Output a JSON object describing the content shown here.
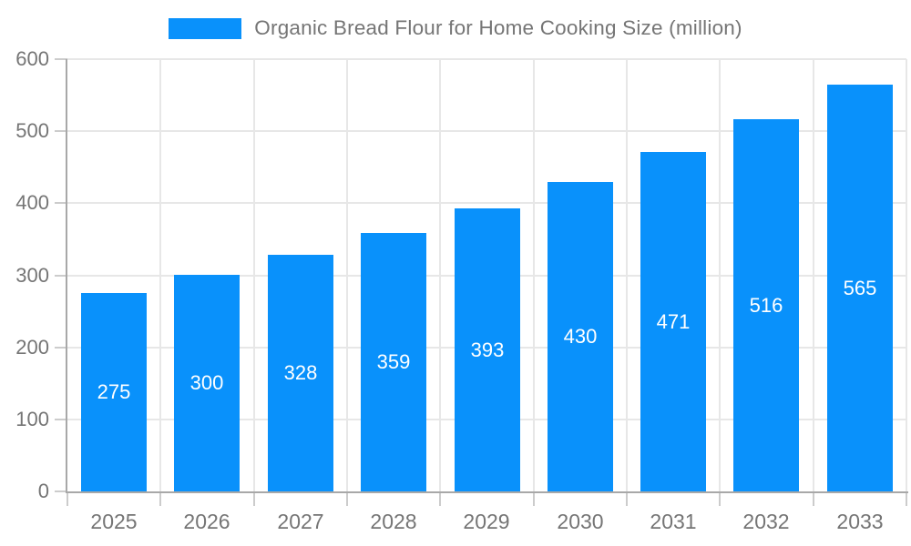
{
  "chart_data": {
    "type": "bar",
    "title": "Organic Bread Flour for Home Cooking Size (million)",
    "categories": [
      "2025",
      "2026",
      "2027",
      "2028",
      "2029",
      "2030",
      "2031",
      "2032",
      "2033"
    ],
    "values": [
      275,
      300,
      328,
      359,
      393,
      430,
      471,
      516,
      565
    ],
    "xlabel": "",
    "ylabel": "",
    "ylim": [
      0,
      600
    ],
    "yticks": [
      0,
      100,
      200,
      300,
      400,
      500,
      600
    ],
    "grid": true,
    "legend_position": "top",
    "value_labels": "inside-center"
  },
  "legend": {
    "label": "Organic Bread Flour for Home Cooking Size (million)"
  },
  "colors": {
    "bar": "#0991fb",
    "grid": "#e7e7e7",
    "axis": "#a8a8a8",
    "tick": "#cccccc",
    "text": "#757575",
    "value_label": "#ffffff",
    "background": "#ffffff"
  }
}
